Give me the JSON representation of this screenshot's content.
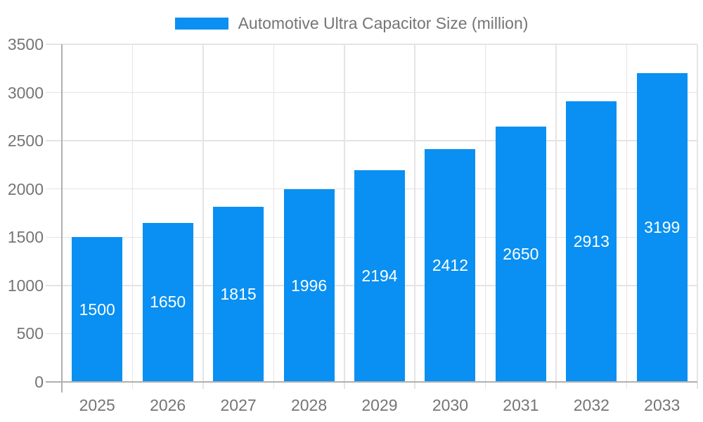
{
  "chart_data": {
    "type": "bar",
    "title": "Automotive Ultra Capacitor Size (million)",
    "categories": [
      "2025",
      "2026",
      "2027",
      "2028",
      "2029",
      "2030",
      "2031",
      "2032",
      "2033"
    ],
    "values": [
      1500,
      1650,
      1815,
      1996,
      2194,
      2412,
      2650,
      2913,
      3199
    ],
    "series": [
      {
        "name": "Automotive Ultra Capacitor Size (million)",
        "values": [
          1500,
          1650,
          1815,
          1996,
          2194,
          2412,
          2650,
          2913,
          3199
        ]
      }
    ],
    "xlabel": "",
    "ylabel": "",
    "ylim": [
      0,
      3500
    ],
    "yticks": [
      0,
      500,
      1000,
      1500,
      2000,
      2500,
      3000,
      3500
    ],
    "grid": "on",
    "legend_position": "top-center",
    "bar_labels_shown": true,
    "colors": {
      "bar": "#0990f2",
      "bar_label": "#ffffff",
      "axis_text": "#757575",
      "grid_line": "#e4e4e4",
      "axis_line": "#b0b0b0",
      "background": "#ffffff"
    }
  }
}
